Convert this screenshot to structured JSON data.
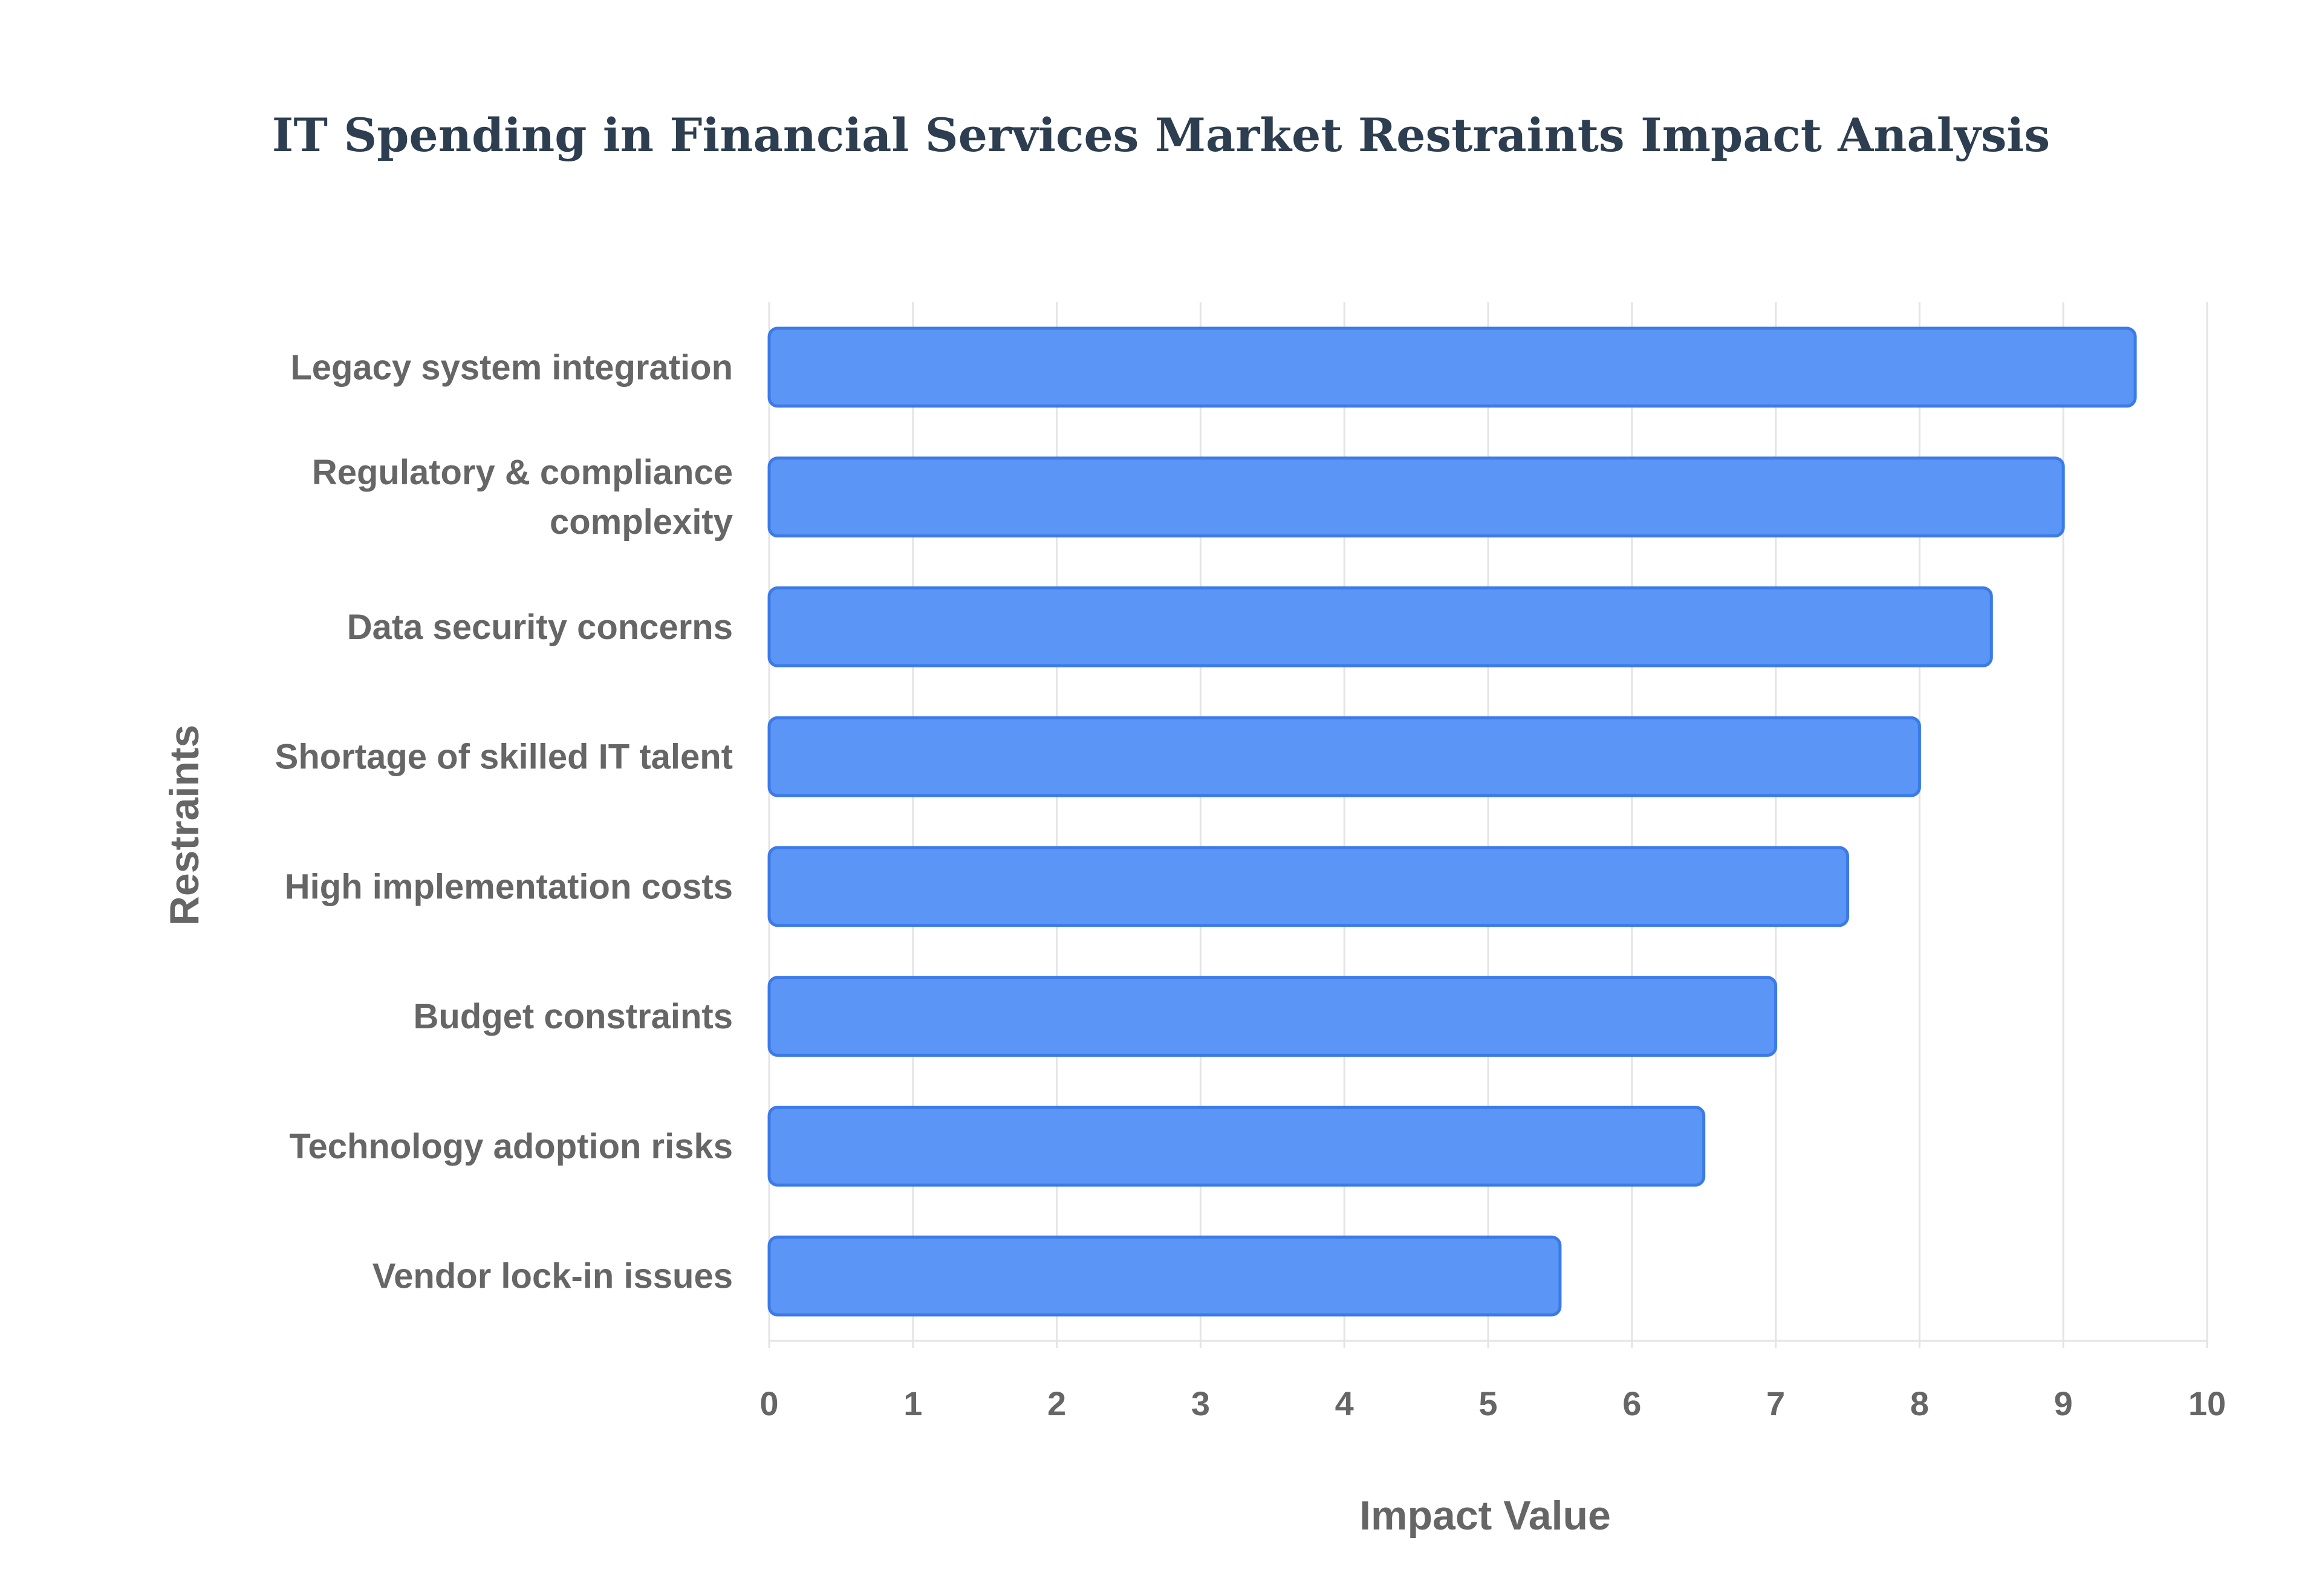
{
  "chart_data": {
    "type": "bar",
    "orientation": "horizontal",
    "title": "IT Spending in Financial Services Market Restraints Impact Analysis",
    "xlabel": "Impact Value",
    "ylabel": "Restraints",
    "xlim": [
      0,
      10
    ],
    "x_ticks": [
      0,
      1,
      2,
      3,
      4,
      5,
      6,
      7,
      8,
      9,
      10
    ],
    "grid": true,
    "categories": [
      [
        "Legacy system integration"
      ],
      [
        "Regulatory & compliance",
        "complexity"
      ],
      [
        "Data security concerns"
      ],
      [
        "Shortage of skilled IT talent"
      ],
      [
        "High implementation costs"
      ],
      [
        "Budget constraints"
      ],
      [
        "Technology adoption risks"
      ],
      [
        "Vendor lock-in issues"
      ]
    ],
    "values": [
      9.5,
      9.0,
      8.5,
      8.0,
      7.5,
      7.0,
      6.5,
      5.5
    ],
    "colors": {
      "bar_fill": "#5b95f5",
      "bar_stroke": "#3b7ae8",
      "title": "#2c3e50",
      "text": "#666666",
      "grid": "#e4e4e4"
    }
  }
}
